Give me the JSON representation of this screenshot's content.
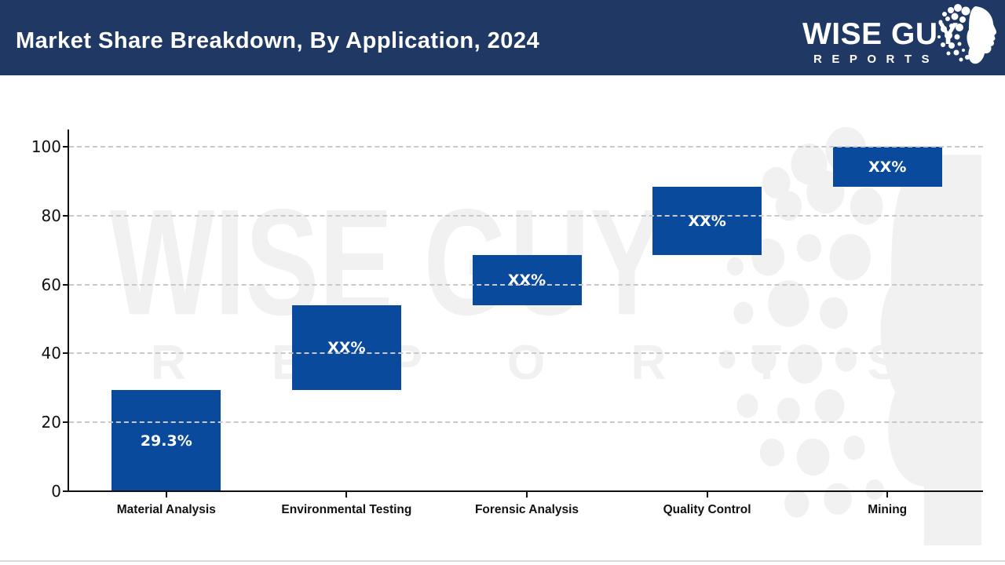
{
  "header": {
    "title": "Market Share Breakdown, By Application, 2024",
    "logo": {
      "line1": "WISE GUY",
      "line2": "REPORTS"
    }
  },
  "watermark": {
    "line1": "WISE GUY",
    "line2": "R E P O R T S"
  },
  "chart_data": {
    "type": "bar",
    "subtype": "waterfall",
    "title": "Market Share Breakdown, By Application, 2024",
    "categories": [
      "Material Analysis",
      "Environmental Testing",
      "Forensic Analysis",
      "Quality Control",
      "Mining"
    ],
    "segments": [
      {
        "category": "Material Analysis",
        "start": 0,
        "end": 29.3,
        "label": "29.3%"
      },
      {
        "category": "Environmental Testing",
        "start": 29.3,
        "end": 54.0,
        "label": "XX%"
      },
      {
        "category": "Forensic Analysis",
        "start": 54.0,
        "end": 68.5,
        "label": "XX%"
      },
      {
        "category": "Quality Control",
        "start": 68.5,
        "end": 88.3,
        "label": "XX%"
      },
      {
        "category": "Mining",
        "start": 88.3,
        "end": 100,
        "label": "XX%"
      }
    ],
    "ylabel": "",
    "xlabel": "",
    "ylim": [
      0,
      100
    ],
    "yticks": [
      0,
      20,
      40,
      60,
      80,
      100
    ],
    "grid": true,
    "legend": false,
    "bar_color": "#0A4A9C",
    "bar_label_color": "#ffffff"
  },
  "colors": {
    "header_bg": "#1F3864",
    "bar": "#0A4A9C",
    "axis": "#111111",
    "gridline": "#c9c9c9",
    "watermark": "#f1f1f2"
  }
}
